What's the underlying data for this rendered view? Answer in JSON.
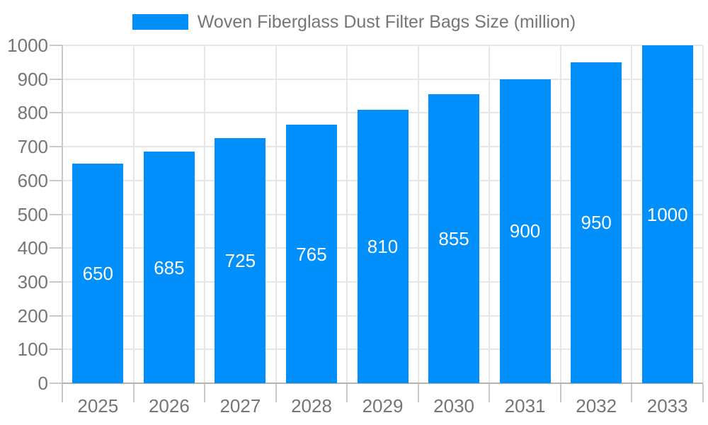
{
  "chart_data": {
    "type": "bar",
    "title": "Woven Fiberglass Dust Filter Bags Size (million)",
    "legend_position": "top",
    "categories": [
      "2025",
      "2026",
      "2027",
      "2028",
      "2029",
      "2030",
      "2031",
      "2032",
      "2033"
    ],
    "series": [
      {
        "name": "Woven Fiberglass Dust Filter Bags Size (million)",
        "values": [
          650,
          685,
          725,
          765,
          810,
          855,
          900,
          950,
          1000
        ]
      }
    ],
    "value_labels_shown": true,
    "xlabel": "",
    "ylabel": "",
    "ylim": [
      0,
      1000
    ],
    "y_tick_step": 100,
    "y_tick_labels": [
      "0",
      "100",
      "200",
      "300",
      "400",
      "500",
      "600",
      "700",
      "800",
      "900",
      "1000"
    ],
    "grid": true
  },
  "colors": {
    "bar": "#008ffb",
    "label_text": "#757575",
    "value_label": "#ffffff",
    "gridline": "#e6e6e6",
    "axis_line": "#b3b3b3",
    "tick": "#c9c9c9",
    "background": "#ffffff"
  }
}
